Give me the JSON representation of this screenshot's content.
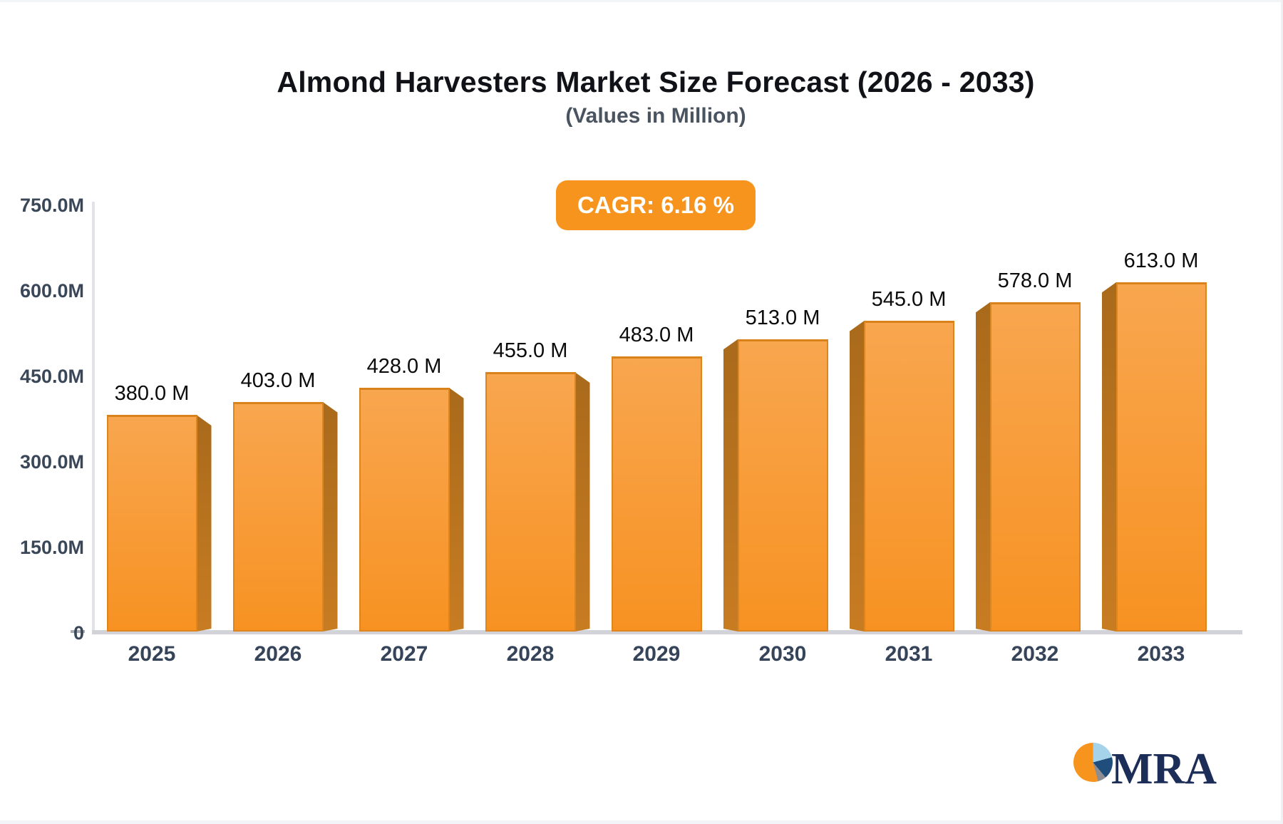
{
  "title": "Almond Harvesters Market Size Forecast (2026 - 2033)",
  "subtitle": "(Values in Million)",
  "badge": {
    "label": "CAGR: 6.16 %",
    "color": "#f7941e",
    "text_color": "#ffffff"
  },
  "chart_data": {
    "type": "bar",
    "title": "Almond Harvesters Market Size Forecast (2026 - 2033)",
    "subtitle": "(Values in Million)",
    "categories": [
      "2025",
      "2026",
      "2027",
      "2028",
      "2029",
      "2030",
      "2031",
      "2032",
      "2033"
    ],
    "values": [
      380,
      403,
      428,
      455,
      483,
      513,
      545,
      578,
      613
    ],
    "value_labels": [
      "380.0 M",
      "403.0 M",
      "428.0 M",
      "455.0 M",
      "483.0 M",
      "513.0 M",
      "545.0 M",
      "578.0 M",
      "613.0 M"
    ],
    "unit": "Million",
    "ylim": [
      0,
      750
    ],
    "y_ticks": [
      {
        "label": "750.0M",
        "value": 750
      },
      {
        "label": "600.0M",
        "value": 600
      },
      {
        "label": "450.0M",
        "value": 450
      },
      {
        "label": "300.0M",
        "value": 300
      },
      {
        "label": "150.0M",
        "value": 150
      },
      {
        "label": "0",
        "value": 0
      }
    ],
    "grid": false,
    "legend": false,
    "bar_style": "3d-extruded",
    "colors": {
      "bar_top": "#f8a64f",
      "bar_bottom": "#f79222",
      "bar_border": "#dd861f",
      "bar_side_dark": "#a96a1b",
      "bar_side_light": "#c87c22",
      "axis_line": "#e2e3e9",
      "baseline": "#d2d3d8",
      "tick_text": "#3a4759",
      "xtick_text": "#36445a",
      "value_label_text": "#0b0b0b"
    }
  },
  "logo": {
    "text": "MRA",
    "text_color": "#1c2d58",
    "pie_wedge_colors": {
      "orange": "#f7941e",
      "light_blue": "#a5d3ea",
      "navy": "#1f4d7c",
      "gray": "#8e8d92"
    }
  }
}
